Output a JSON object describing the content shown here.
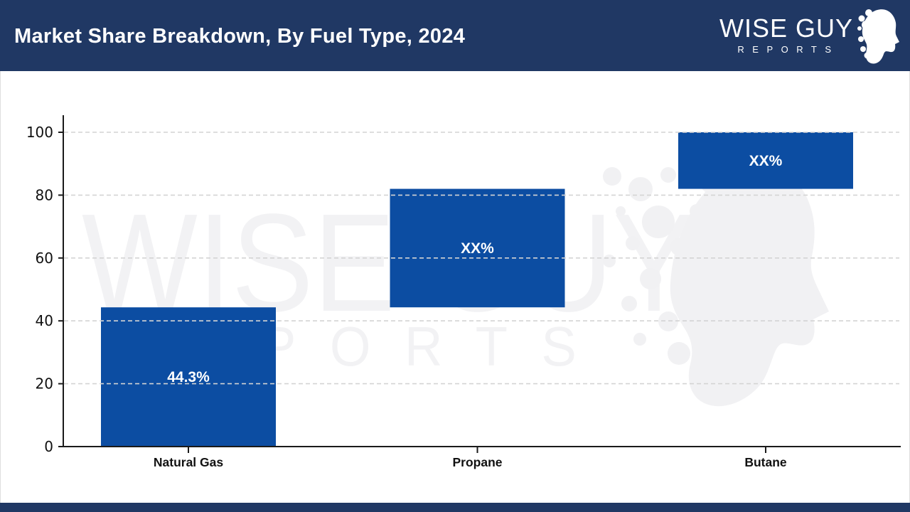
{
  "header": {
    "title": "Market Share Breakdown, By Fuel Type, 2024",
    "bg_color": "#203864",
    "logo": {
      "brand_top": "WISE GUY",
      "brand_bottom": "REPORTS",
      "head_icon": "dotted-head-profile-icon",
      "color": "#ffffff"
    }
  },
  "watermark": {
    "line1": "WISE GUY",
    "line2": "REPORTS",
    "head_icon": "dotted-head-profile-watermark",
    "color": "#f2f2f4"
  },
  "chart_data": {
    "type": "bar",
    "variant": "floating-segment-waterfall",
    "title": "Market Share Breakdown, By Fuel Type, 2024",
    "categories": [
      "Natural Gas",
      "Propane",
      "Butane"
    ],
    "series": [
      {
        "name": "Market share (%)",
        "segments": [
          {
            "category": "Natural Gas",
            "start": 0,
            "end": 44.3,
            "label": "44.3%"
          },
          {
            "category": "Propane",
            "start": 44.3,
            "end": 82,
            "label": "XX%"
          },
          {
            "category": "Butane",
            "start": 82,
            "end": 100,
            "label": "XX%"
          }
        ]
      }
    ],
    "yticks": [
      0,
      20,
      40,
      60,
      80,
      100
    ],
    "ylim": [
      0,
      105
    ],
    "xlabel": "",
    "ylabel": "",
    "legend": "none",
    "grid": "horizontal-dashed",
    "bar_color": "#0c4da2",
    "bar_label_color": "#ffffff",
    "axis_color": "#1a1a1a",
    "grid_color": "#d4d4d4",
    "tick_label_color": "#111111"
  },
  "footer": {
    "bg_color": "#203864"
  }
}
